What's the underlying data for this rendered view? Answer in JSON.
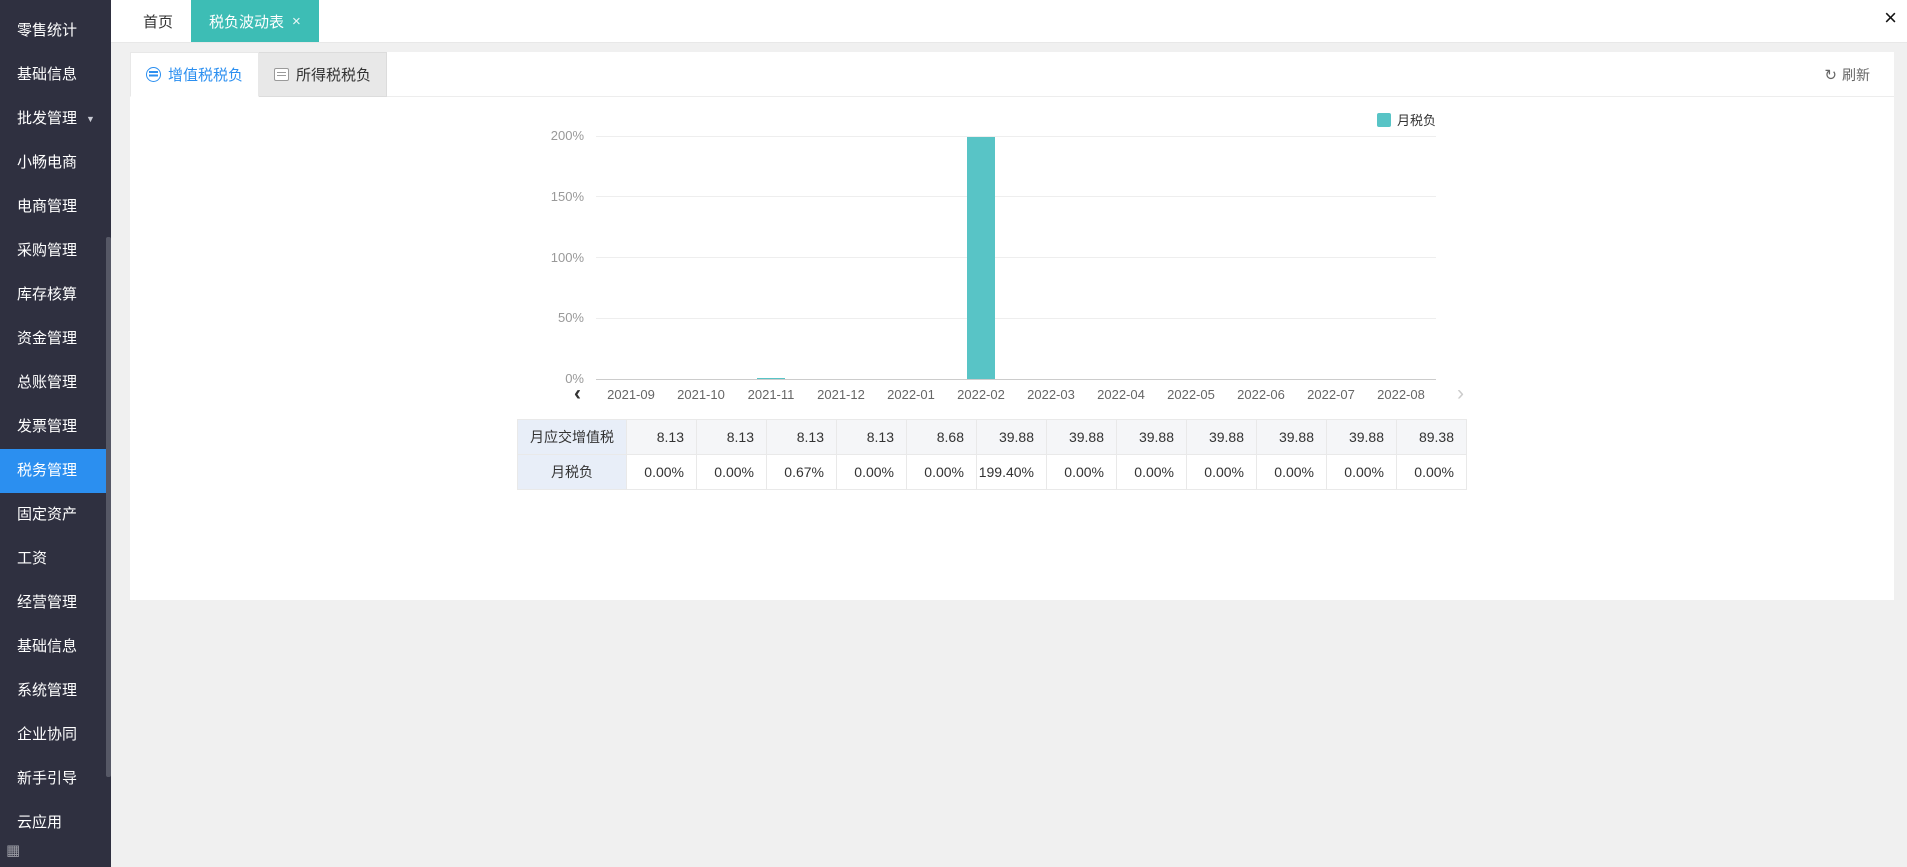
{
  "icons": {
    "caret": "▼",
    "tab_close": "×",
    "window_close": "×",
    "refresh": "↻",
    "grid": "▦",
    "prev": "‹",
    "next": "›"
  },
  "topbar": {
    "tabs": [
      {
        "label": "首页",
        "active": false,
        "closable": false
      },
      {
        "label": "税负波动表",
        "active": true,
        "closable": true
      }
    ]
  },
  "sidebar": {
    "items": [
      {
        "label": "零售统计"
      },
      {
        "label": "基础信息"
      },
      {
        "label": "批发管理",
        "has_dropdown": true
      },
      {
        "label": "小畅电商"
      },
      {
        "label": "电商管理"
      },
      {
        "label": "采购管理"
      },
      {
        "label": "库存核算"
      },
      {
        "label": "资金管理"
      },
      {
        "label": "总账管理"
      },
      {
        "label": "发票管理"
      },
      {
        "label": "税务管理",
        "active": true
      },
      {
        "label": "固定资产"
      },
      {
        "label": "工资"
      },
      {
        "label": "经营管理"
      },
      {
        "label": "基础信息"
      },
      {
        "label": "系统管理"
      },
      {
        "label": "企业协同"
      },
      {
        "label": "新手引导"
      },
      {
        "label": "云应用"
      }
    ]
  },
  "panel": {
    "tabs": [
      {
        "label": "增值税税负",
        "active": true
      },
      {
        "label": "所得税税负",
        "active": false
      }
    ],
    "refresh_label": "刷新"
  },
  "chart_data": {
    "type": "bar",
    "title": "",
    "categories": [
      "2021-09",
      "2021-10",
      "2021-11",
      "2021-12",
      "2022-01",
      "2022-02",
      "2022-03",
      "2022-04",
      "2022-05",
      "2022-06",
      "2022-07",
      "2022-08"
    ],
    "series": [
      {
        "name": "月税负",
        "values": [
          0,
          0,
          0.67,
          0,
          0,
          199.4,
          0,
          0,
          0,
          0,
          0,
          0
        ]
      }
    ],
    "unit": "%",
    "ylim": [
      0,
      200
    ],
    "y_ticks": [
      "0%",
      "50%",
      "100%",
      "150%",
      "200%"
    ],
    "legend": [
      "月税负"
    ],
    "legend_position": "top-right",
    "grid": true,
    "bar_color": "#58c4c6"
  },
  "table": {
    "rows": [
      {
        "label": "月应交增值税",
        "values": [
          "8.13",
          "8.13",
          "8.13",
          "8.13",
          "8.68",
          "39.88",
          "39.88",
          "39.88",
          "39.88",
          "39.88",
          "39.88",
          "89.38"
        ]
      },
      {
        "label": "月税负",
        "values": [
          "0.00%",
          "0.00%",
          "0.67%",
          "0.00%",
          "0.00%",
          "199.40%",
          "0.00%",
          "0.00%",
          "0.00%",
          "0.00%",
          "0.00%",
          "0.00%"
        ]
      }
    ]
  }
}
